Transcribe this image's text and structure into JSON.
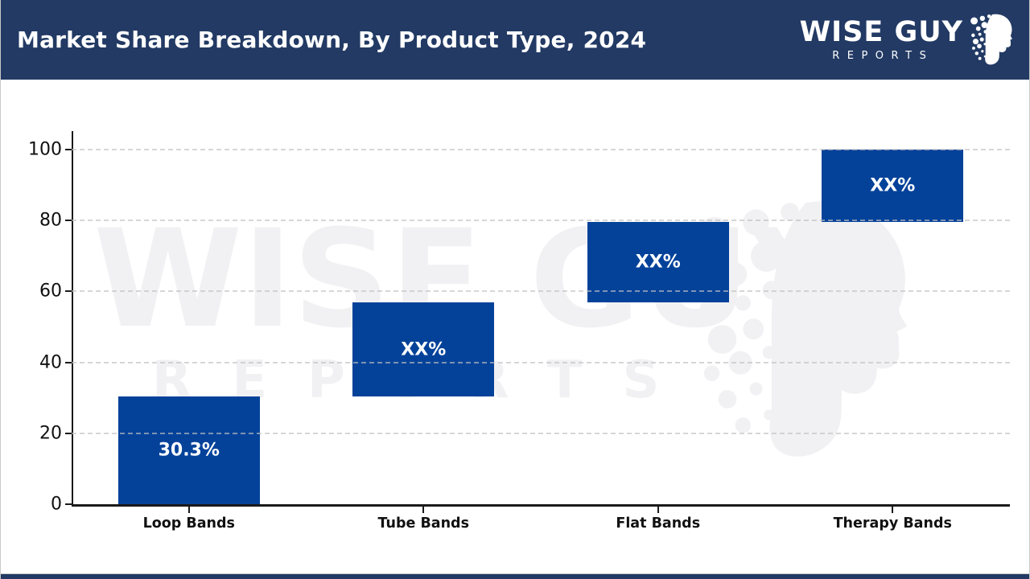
{
  "header": {
    "title": "Market Share Breakdown, By Product Type, 2024",
    "bg_color": "#223a64",
    "text_color": "#ffffff",
    "logo": {
      "name_line": "WISE GUY",
      "sub_line": "REPORTS"
    }
  },
  "watermark": {
    "line1": "WISE GUY",
    "line2": "REPORTS",
    "color": "#f1f1f3"
  },
  "chart_data": {
    "type": "bar",
    "subtype": "waterfall",
    "title": "Market Share Breakdown, By Product Type, 2024",
    "categories": [
      "Loop Bands",
      "Tube Bands",
      "Flat Bands",
      "Therapy Bands"
    ],
    "segments": [
      {
        "category": "Loop Bands",
        "start": 0,
        "end": 30.3,
        "label": "30.3%"
      },
      {
        "category": "Tube Bands",
        "start": 30.3,
        "end": 56.9,
        "label": "XX%"
      },
      {
        "category": "Flat Bands",
        "start": 56.9,
        "end": 79.6,
        "label": "XX%"
      },
      {
        "category": "Therapy Bands",
        "start": 79.6,
        "end": 100,
        "label": "XX%"
      }
    ],
    "xlabel": "",
    "ylabel": "",
    "ylim": [
      0,
      100
    ],
    "yticks": [
      0,
      20,
      40,
      60,
      80,
      100
    ],
    "grid": "horizontal-dashed-over-bars",
    "legend": "none",
    "colors": {
      "bar": "#04429a",
      "bar_label": "#ffffff",
      "axis": "#1a1a1a",
      "tick_label": "#111111",
      "gridline": "#d5d5d5"
    }
  }
}
